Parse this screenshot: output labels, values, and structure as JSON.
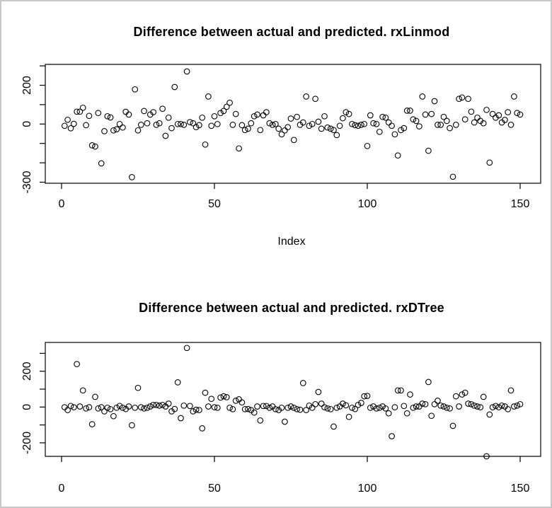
{
  "window": {
    "background": "#ffffff",
    "border_color": "#c8c8c8",
    "text_color": "#000000"
  },
  "chart_data": [
    {
      "type": "scatter",
      "title": "Difference between actual and predicted. rxLinmod",
      "xlabel": "Index",
      "ylabel": "",
      "marker": "open-circle",
      "marker_color": "#000000",
      "grid": false,
      "xlim": [
        -5,
        156
      ],
      "ylim": [
        -305,
        305
      ],
      "x_ticks": [
        0,
        50,
        100,
        150
      ],
      "x_tick_labels": [
        "0",
        "50",
        "100",
        "150"
      ],
      "y_ticks": [
        300,
        200,
        100,
        0,
        -100,
        -200,
        -300
      ],
      "y_labeled_ticks": [
        200,
        0,
        -300
      ],
      "x_is_index_1_to_150": true,
      "y": [
        -9,
        22,
        -22,
        1,
        64,
        64,
        84,
        -6,
        42,
        -110,
        -116,
        57,
        -203,
        -37,
        40,
        34,
        -33,
        -27,
        0,
        -18,
        63,
        49,
        -274,
        179,
        -33,
        -4,
        67,
        4,
        49,
        61,
        -4,
        4,
        79,
        -61,
        33,
        -21,
        191,
        0,
        0,
        -4,
        271,
        10,
        4,
        -16,
        -6,
        33,
        -106,
        142,
        -9,
        40,
        0,
        57,
        67,
        89,
        110,
        -4,
        52,
        -126,
        -6,
        -31,
        -24,
        4,
        40,
        49,
        -31,
        45,
        61,
        4,
        -4,
        0,
        -24,
        -53,
        -33,
        -16,
        28,
        -82,
        37,
        -4,
        8,
        142,
        -9,
        0,
        130,
        12,
        -24,
        40,
        -18,
        -24,
        -31,
        -57,
        -9,
        30,
        61,
        52,
        0,
        -6,
        -9,
        -4,
        0,
        -113,
        45,
        4,
        0,
        -40,
        37,
        33,
        8,
        -9,
        -53,
        -162,
        -31,
        -21,
        69,
        69,
        24,
        16,
        -12,
        142,
        49,
        -138,
        52,
        118,
        -4,
        -4,
        37,
        16,
        -21,
        -272,
        -4,
        130,
        137,
        24,
        130,
        64,
        8,
        33,
        16,
        4,
        73,
        -199,
        52,
        33,
        45,
        8,
        21,
        61,
        -4,
        142,
        57,
        49
      ]
    },
    {
      "type": "scatter",
      "title": "Difference between actual and predicted. rxDTree",
      "xlabel": "",
      "ylabel": "",
      "marker": "open-circle",
      "marker_color": "#000000",
      "grid": false,
      "xlim": [
        -5,
        156
      ],
      "ylim": [
        -295,
        345
      ],
      "x_ticks": [
        0,
        50,
        100,
        150
      ],
      "x_tick_labels": [
        "0",
        "50",
        "100",
        "150"
      ],
      "y_ticks": [
        300,
        200,
        100,
        0,
        -100,
        -200
      ],
      "y_labeled_ticks": [
        200,
        0,
        -200
      ],
      "x_is_index_1_to_150": true,
      "y": [
        -1,
        -17,
        6,
        -1,
        240,
        3,
        93,
        -8,
        -1,
        -96,
        57,
        -8,
        -1,
        -24,
        -4,
        -12,
        -51,
        -4,
        6,
        -4,
        -11,
        3,
        -102,
        -4,
        107,
        -1,
        -8,
        -4,
        3,
        12,
        12,
        8,
        12,
        3,
        19,
        -24,
        -11,
        138,
        -62,
        8,
        330,
        6,
        -24,
        -15,
        -17,
        -119,
        80,
        3,
        46,
        -1,
        -4,
        53,
        60,
        55,
        -4,
        -12,
        35,
        43,
        26,
        -12,
        -11,
        -17,
        -31,
        3,
        -75,
        6,
        6,
        -4,
        3,
        -12,
        -17,
        -4,
        -82,
        -4,
        3,
        -4,
        -12,
        -15,
        134,
        -17,
        8,
        -4,
        16,
        84,
        19,
        -1,
        -8,
        -12,
        -109,
        -4,
        3,
        19,
        10,
        -55,
        -4,
        -11,
        12,
        23,
        60,
        62,
        -4,
        3,
        -8,
        -4,
        3,
        -8,
        -35,
        -163,
        -1,
        93,
        93,
        6,
        -35,
        70,
        -4,
        3,
        3,
        19,
        16,
        140,
        -49,
        16,
        35,
        8,
        3,
        -4,
        -8,
        -105,
        60,
        3,
        70,
        80,
        19,
        16,
        8,
        3,
        -1,
        57,
        -275,
        -42,
        -1,
        6,
        -1,
        8,
        3,
        -12,
        93,
        3,
        8,
        16
      ]
    }
  ]
}
